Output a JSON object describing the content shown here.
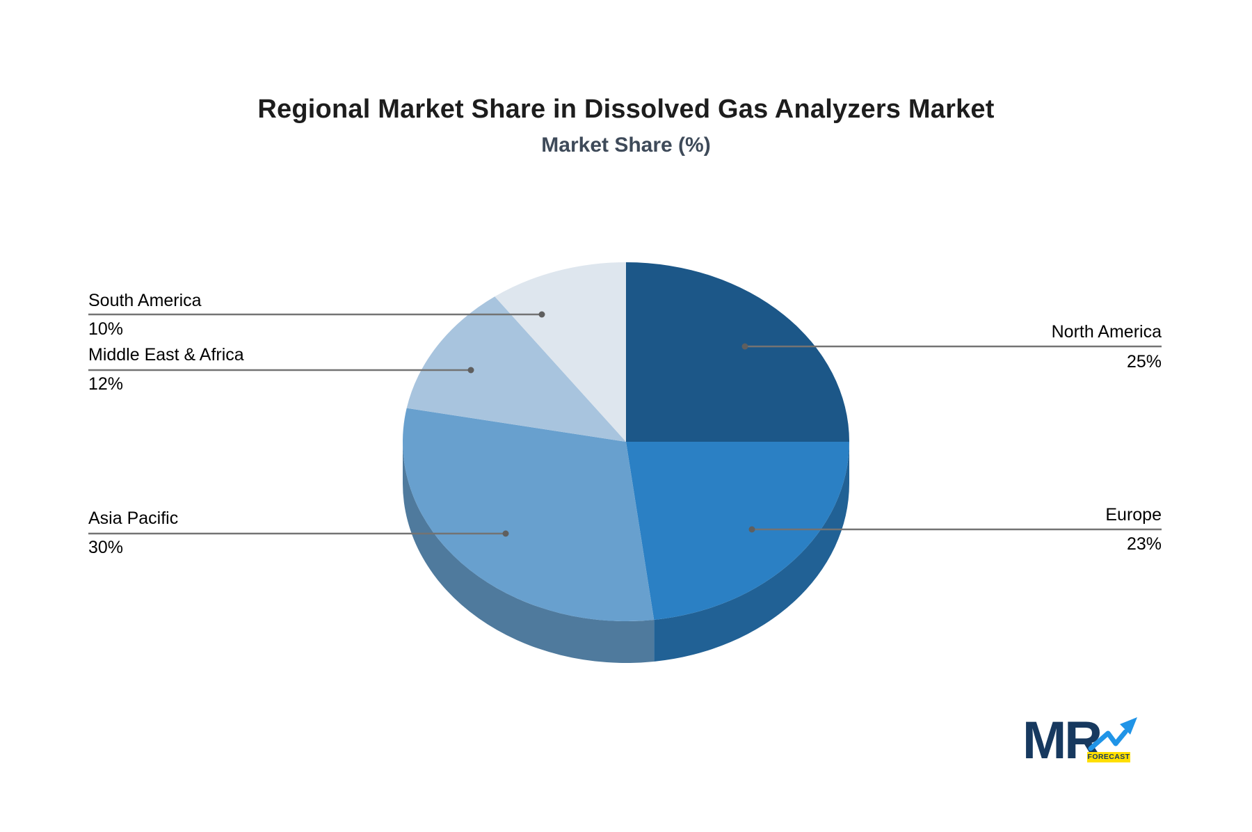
{
  "chart_data": {
    "type": "pie",
    "title": "Regional Market Share in Dissolved Gas Analyzers Market",
    "subtitle": "Market Share (%)",
    "unit": "%",
    "effect": "3d-depth",
    "legend_position": "callout-labels-left-right",
    "background": "#ffffff",
    "start_angle_deg": 0,
    "direction": "clockwise",
    "segments": [
      {
        "label": "North America",
        "value": 25,
        "pct_label": "25%",
        "color": "#1c5788",
        "label_side": "right"
      },
      {
        "label": "Europe",
        "value": 23,
        "pct_label": "23%",
        "color": "#2b80c4",
        "label_side": "right"
      },
      {
        "label": "Asia Pacific",
        "value": 30,
        "pct_label": "30%",
        "color": "#68a0ce",
        "label_side": "left"
      },
      {
        "label": "Middle East & Africa",
        "value": 12,
        "pct_label": "12%",
        "color": "#a8c4de",
        "label_side": "left"
      },
      {
        "label": "South America",
        "value": 10,
        "pct_label": "10%",
        "color": "#dee6ee",
        "label_side": "left"
      }
    ],
    "callout_line_color": "#737373",
    "callout_dot_color": "#5f5f5f",
    "label_color": "#2f2f2f",
    "pct_color": "#9e9e9e"
  },
  "logo": {
    "text": "MR",
    "sub_text": "FORECAST",
    "navy": "#17395f",
    "yellow": "#ffdf00",
    "arrow_blue": "#2094e7"
  }
}
